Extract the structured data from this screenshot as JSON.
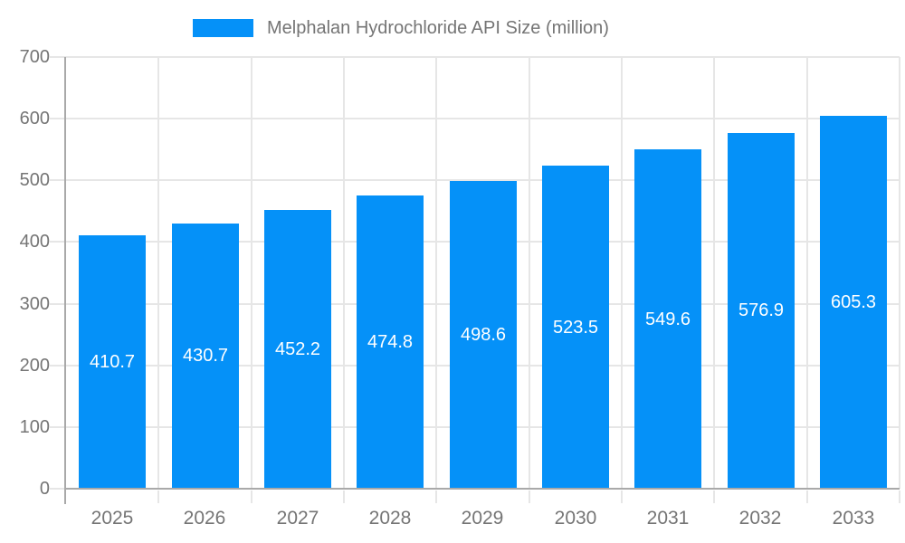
{
  "colors": {
    "bar": "#0591F8",
    "grid": "#e6e6e6",
    "axis": "#a9a9a9",
    "text": "#757575",
    "bar_label": "#ffffff"
  },
  "legend": {
    "label": "Melphalan Hydrochloride API Size (million)"
  },
  "chart_data": {
    "type": "bar",
    "title": "Melphalan Hydrochloride API Size (million)",
    "categories": [
      "2025",
      "2026",
      "2027",
      "2028",
      "2029",
      "2030",
      "2031",
      "2032",
      "2033"
    ],
    "values": [
      410.7,
      430.7,
      452.2,
      474.8,
      498.6,
      523.5,
      549.6,
      576.9,
      605.3
    ],
    "bar_labels": [
      "410.7",
      "430.7",
      "452.2",
      "474.8",
      "498.6",
      "523.5",
      "549.6",
      "576.9",
      "605.3"
    ],
    "xlabel": "",
    "ylabel": "",
    "ylim": [
      0,
      700
    ],
    "yticks": [
      0,
      100,
      200,
      300,
      400,
      500,
      600,
      700
    ],
    "grid": true,
    "legend_position": "top"
  }
}
